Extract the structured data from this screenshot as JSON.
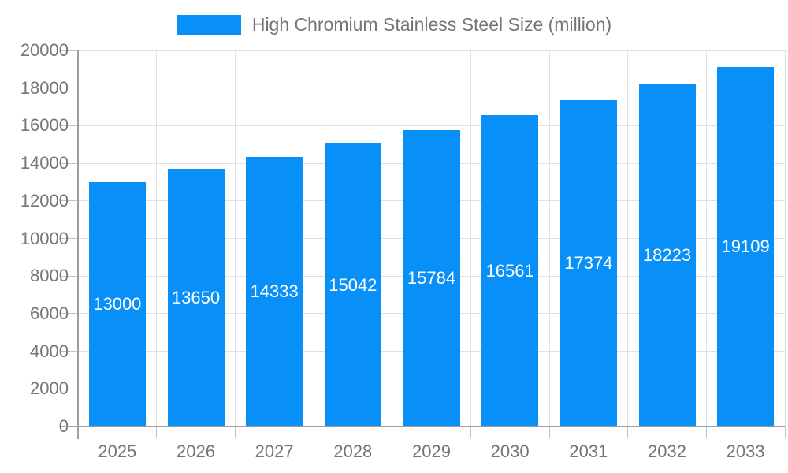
{
  "chart_data": {
    "type": "bar",
    "title": "High Chromium Stainless Steel Size (million)",
    "legend_position": "top",
    "categories": [
      "2025",
      "2026",
      "2027",
      "2028",
      "2029",
      "2030",
      "2031",
      "2032",
      "2033"
    ],
    "series": [
      {
        "name": "High Chromium Stainless Steel Size (million)",
        "values": [
          13000,
          13650,
          14333,
          15042,
          15784,
          16561,
          17374,
          18223,
          19109
        ]
      }
    ],
    "bar_value_labels": [
      "13000",
      "13650",
      "14333",
      "15042",
      "15784",
      "16561",
      "17374",
      "18223",
      "19109"
    ],
    "xlabel": "",
    "ylabel": "",
    "ylim": [
      0,
      20000
    ],
    "yticks": [
      0,
      2000,
      4000,
      6000,
      8000,
      10000,
      12000,
      14000,
      16000,
      18000,
      20000
    ],
    "ytick_labels": [
      "0",
      "2000",
      "4000",
      "6000",
      "8000",
      "10000",
      "12000",
      "14000",
      "16000",
      "18000",
      "20000"
    ],
    "grid": true,
    "colors": {
      "bar": "#0890f8",
      "bar_label_text": "#ffffff",
      "axis_text": "#757575",
      "axis_line": "#9e9e9e",
      "gridline": "#e0e0e0",
      "tick": "#c2c2c2",
      "background": "#ffffff"
    }
  }
}
